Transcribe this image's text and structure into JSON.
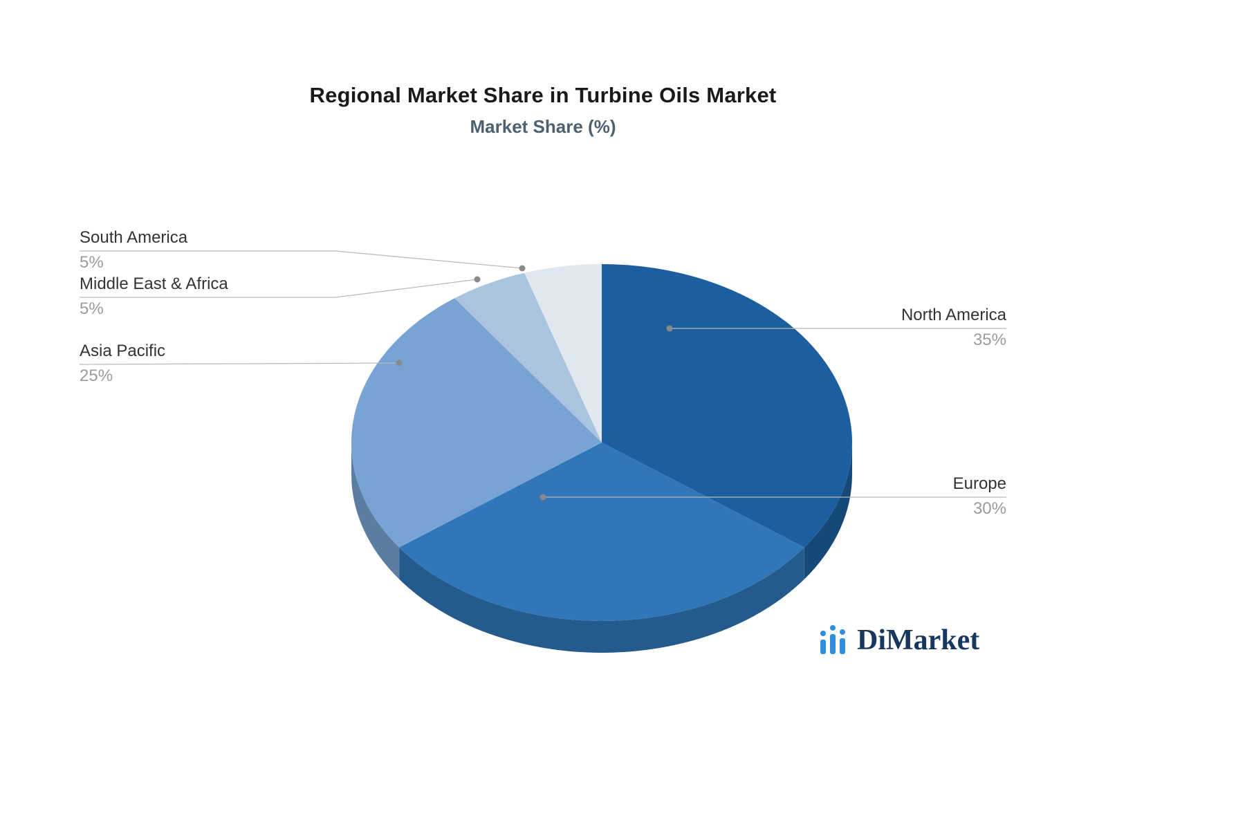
{
  "chart_data": {
    "type": "pie",
    "title": "Regional Market Share in Turbine Oils Market",
    "subtitle": "Market Share (%)",
    "unit": "%",
    "direction": "clockwise",
    "start_angle_deg": 0,
    "effect": "3d",
    "legend": "none",
    "slices": [
      {
        "label": "North America",
        "value": 35,
        "value_label": "35%",
        "color": "#1d5f9e"
      },
      {
        "label": "Europe",
        "value": 30,
        "value_label": "30%",
        "color": "#2f77b8"
      },
      {
        "label": "Asia Pacific",
        "value": 25,
        "value_label": "25%",
        "color": "#77a4d4"
      },
      {
        "label": "Middle East & Africa",
        "value": 5,
        "value_label": "5%",
        "color": "#aac4e0"
      },
      {
        "label": "South America",
        "value": 5,
        "value_label": "5%",
        "color": "#e1e7ee"
      }
    ]
  },
  "branding": {
    "logo_text": "DiMarket"
  }
}
